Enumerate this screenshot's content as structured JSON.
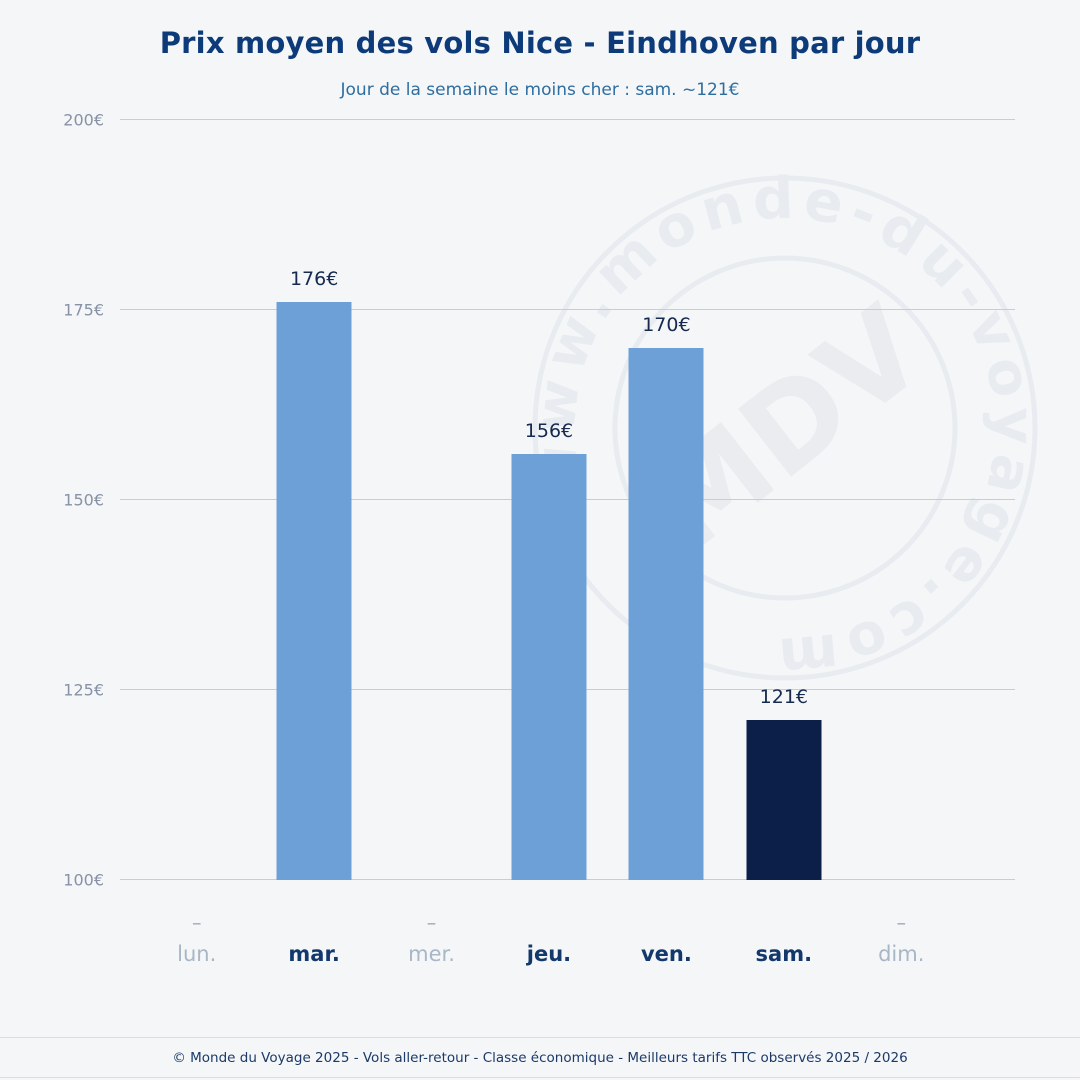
{
  "page": {
    "title": "Prix moyen des vols Nice - Eindhoven par jour",
    "subtitle": "Jour de la semaine le moins cher : sam. ~121€",
    "footer": "© Monde du Voyage 2025 - Vols aller-retour - Classe économique - Meilleurs tarifs TTC observés 2025 / 2026"
  },
  "watermark": {
    "ring_text": "www.monde-du-voyage.com",
    "center_text": "MDV"
  },
  "colors": {
    "background": "#f4f6f8",
    "title": "#0d3b79",
    "subtitle": "#2e6da0",
    "bar": "#6ea0d8",
    "bar_highlight": "#0c1f49",
    "gridline": "#c6ccd9",
    "tick_label": "#8792a6",
    "day_active": "#12386c",
    "day_muted": "#a9b6c6",
    "footer_text": "#1c3a68"
  },
  "chart_data": {
    "type": "bar",
    "title": "Prix moyen des vols Nice - Eindhoven par jour",
    "subtitle": "Jour de la semaine le moins cher : sam. ~121€",
    "categories": [
      "lun.",
      "mar.",
      "mer.",
      "jeu.",
      "ven.",
      "sam.",
      "dim."
    ],
    "values": [
      null,
      176,
      null,
      156,
      170,
      121,
      null
    ],
    "bar_labels": [
      "–",
      "176€",
      "–",
      "156€",
      "170€",
      "121€",
      "–"
    ],
    "no_data_marker": "–",
    "highlight_index": 5,
    "ylim": [
      100,
      200
    ],
    "yticks": [
      100,
      125,
      150,
      175,
      200
    ],
    "ytick_labels": [
      "100€",
      "125€",
      "150€",
      "175€",
      "200€"
    ],
    "ylabel": "",
    "xlabel": "",
    "grid": true,
    "legend": false
  }
}
